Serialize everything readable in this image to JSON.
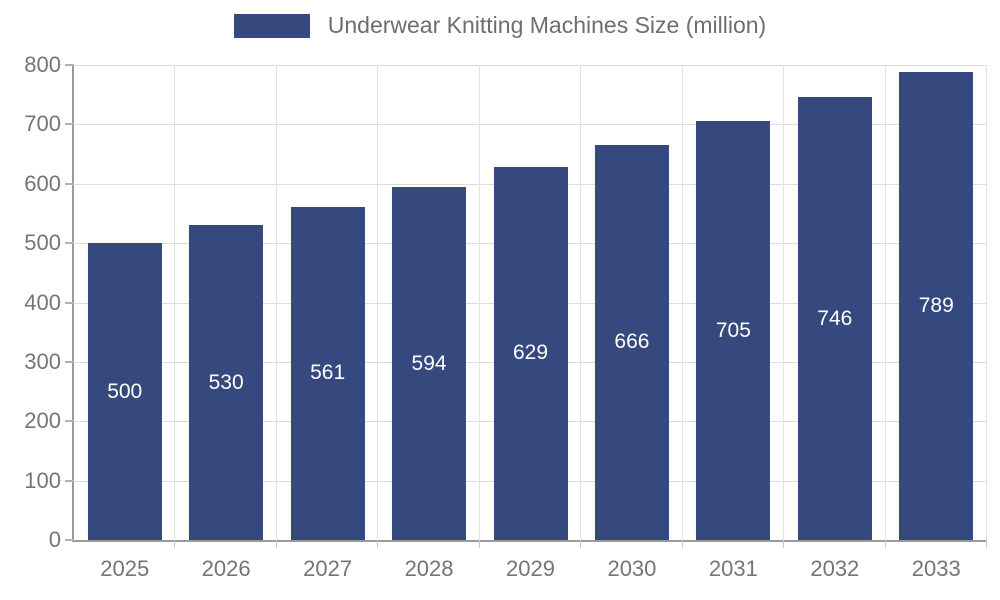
{
  "legend": {
    "label": "Underwear Knitting Machines Size (million)"
  },
  "chart_data": {
    "type": "bar",
    "title": "Underwear Knitting Machines Size (million)",
    "categories": [
      "2025",
      "2026",
      "2027",
      "2028",
      "2029",
      "2030",
      "2031",
      "2032",
      "2033"
    ],
    "values": [
      500,
      530,
      561,
      594,
      629,
      666,
      705,
      746,
      789
    ],
    "series": [
      {
        "name": "Underwear Knitting Machines Size (million)",
        "values": [
          500,
          530,
          561,
          594,
          629,
          666,
          705,
          746,
          789
        ]
      }
    ],
    "xlabel": "",
    "ylabel": "",
    "ylim": [
      0,
      800
    ],
    "yticks": [
      0,
      100,
      200,
      300,
      400,
      500,
      600,
      700,
      800
    ],
    "grid": true,
    "legend_position": "top",
    "value_labels": "inside-center",
    "colors": {
      "bar": "#35497e",
      "bar_value_label": "#ffffff",
      "axis_line": "#9a9a9a",
      "grid_line": "#dcdcdc",
      "tick_label": "#757575",
      "legend_text": "#6e6e6e"
    }
  }
}
